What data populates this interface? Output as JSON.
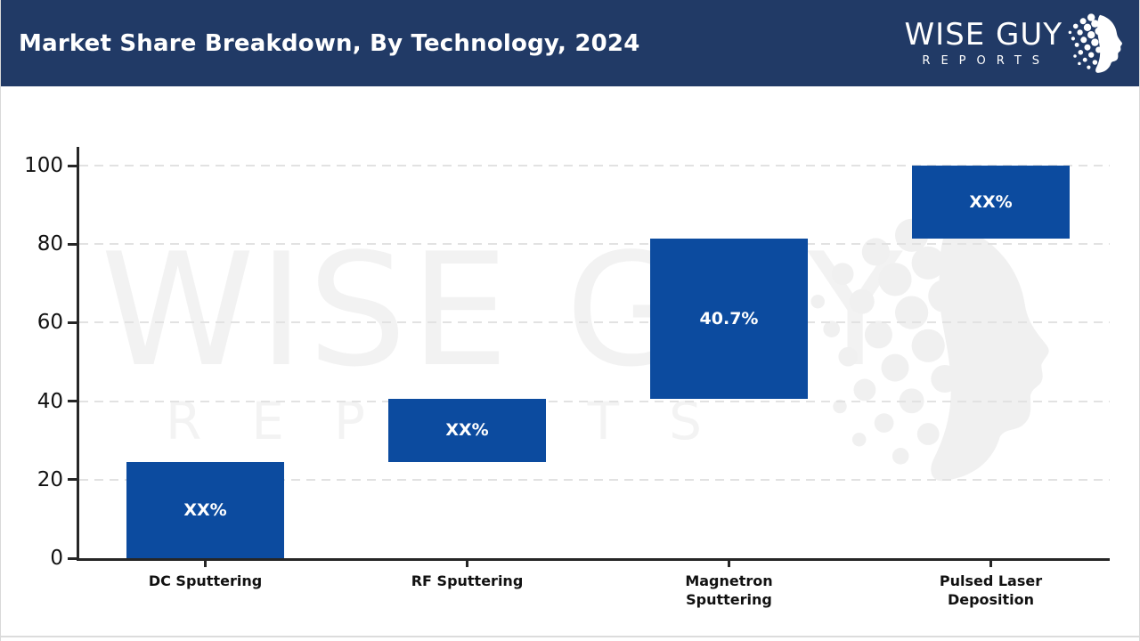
{
  "header": {
    "title": "Market Share Breakdown, By Technology, 2024",
    "background_color": "#213a66",
    "brand": {
      "wordmark": "WISE GUY",
      "sub_wordmark": "REPORTS"
    }
  },
  "icons": {
    "brand_mark": "dotted-head-profile-icon"
  },
  "watermark": {
    "wordmark": "WISE GUY",
    "sub_wordmark": "REPORTS"
  },
  "chart_data": {
    "type": "bar",
    "subtype": "floating-waterfall",
    "title": "Market Share Breakdown, By Technology, 2024",
    "xlabel": "",
    "ylabel": "",
    "ylim": [
      0,
      105
    ],
    "yticks": [
      0,
      20,
      40,
      60,
      80,
      100
    ],
    "grid": "horizontal-dashed",
    "grid_color": "#e2e2e2",
    "bar_color": "#0c4b9f",
    "categories": [
      "DC Sputtering",
      "RF Sputtering",
      "Magnetron\nSputtering",
      "Pulsed Laser\nDeposition"
    ],
    "segments": [
      {
        "category": "DC Sputtering",
        "start": 0,
        "end": 24.5,
        "value_label": "XX%"
      },
      {
        "category": "RF Sputtering",
        "start": 24.5,
        "end": 40.7,
        "value_label": "XX%"
      },
      {
        "category": "Magnetron Sputtering",
        "start": 40.7,
        "end": 81.4,
        "value_label": "40.7%"
      },
      {
        "category": "Pulsed Laser Deposition",
        "start": 81.4,
        "end": 100,
        "value_label": "XX%"
      }
    ]
  }
}
